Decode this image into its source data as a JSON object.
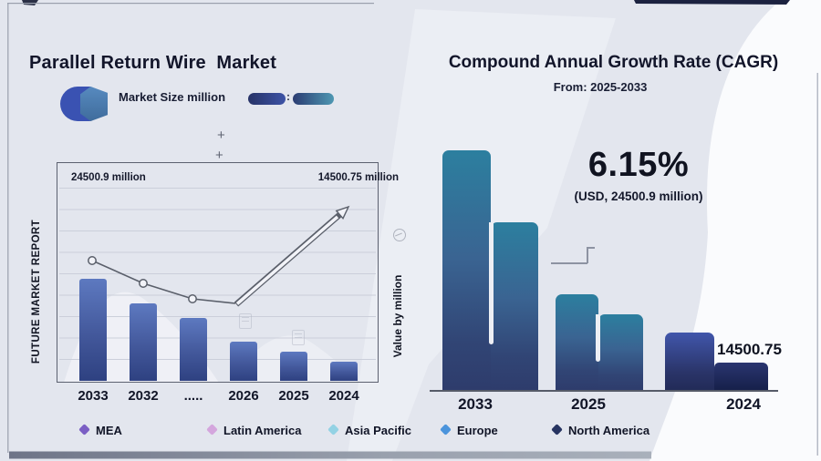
{
  "left_panel": {
    "title": "Parallel Return Wire  Market",
    "legend": {
      "label": "Market Size million",
      "separator": ":"
    },
    "plus_marks": [
      "+",
      "+"
    ],
    "chart": {
      "top_left_label": "24500.9 million",
      "top_right_label": "14500.75 million",
      "side_label": "FUTURE MARKET REPORT"
    }
  },
  "right_panel": {
    "title": "Compound Annual Growth Rate (CAGR)",
    "subtitle": "From: 2025-2033",
    "stat_value": "6.15%",
    "stat_note": "(USD, 24500.9 million)",
    "side_label": "Value by million",
    "value_label": "14500.75"
  },
  "legend": {
    "regions": [
      {
        "label": "MEA",
        "color": "#7b5fc4"
      },
      {
        "label": "Latin America",
        "color": "#d4a6dd"
      },
      {
        "label": "Asia Pacific",
        "color": "#93d2e4"
      },
      {
        "label": "Europe",
        "color": "#4b94dc"
      },
      {
        "label": "North America",
        "color": "#273461"
      }
    ]
  },
  "colors": {
    "background": "#e3e6ee",
    "left_bar_top": "#5d79c0",
    "left_bar_bottom": "#2e4181",
    "right_bar_teal_top": "#2c7f9f",
    "right_bar_navy_bottom": "#16204a",
    "accent_royal": "#3a52b2"
  },
  "chart_data": [
    {
      "type": "bar",
      "title": "Parallel Return Wire  Market",
      "categories": [
        "2033",
        "2032",
        ".....",
        "2026",
        "2025",
        "2024"
      ],
      "series": [
        {
          "name": "Market Size million",
          "relative_heights_pct": [
            100,
            76,
            62,
            38,
            29,
            19
          ]
        }
      ],
      "annotations": {
        "top_left": "24500.9 million",
        "top_right": "14500.75 million",
        "overlay": "declining line with circle markers, then outlined arrow rising to upper right"
      },
      "ylabel": "",
      "side_label": "FUTURE MARKET REPORT",
      "grid": true,
      "note": "stylized infographic; numeric y-axis not shown"
    },
    {
      "type": "bar",
      "title": "Compound Annual Growth Rate (CAGR)",
      "subtitle": "From: 2025-2033",
      "stat": "6.15%",
      "stat_note": "(USD, 24500.9 million)",
      "categories": [
        "2033",
        "2025",
        "2024"
      ],
      "groups": [
        {
          "category": "2033",
          "bars_pct": [
            100,
            70
          ]
        },
        {
          "category": "2025",
          "bars_pct": [
            40,
            31.5
          ]
        },
        {
          "category": "2024",
          "bars_pct": [
            24,
            11.5
          ]
        }
      ],
      "value_label": "14500.75",
      "ylabel": "Value by million",
      "grid": false,
      "note": "stylized infographic; numeric y-axis not shown"
    }
  ]
}
